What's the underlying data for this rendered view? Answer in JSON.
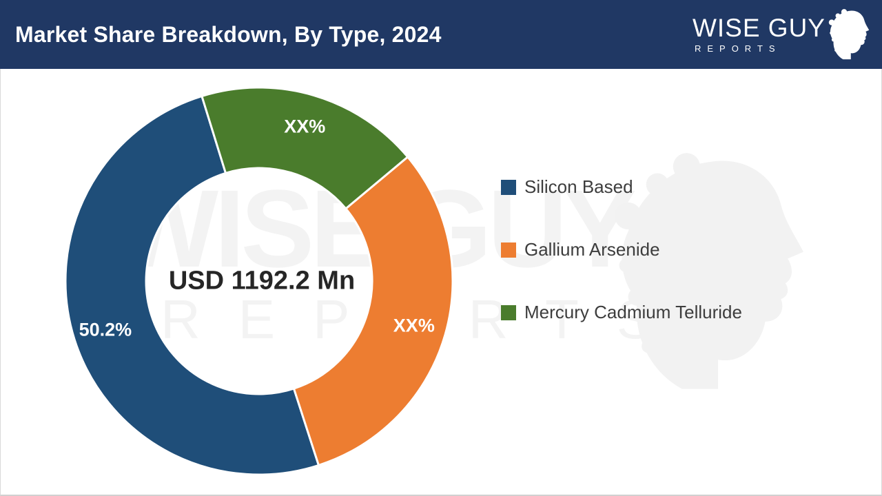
{
  "header": {
    "title": "Market Share Breakdown, By Type, 2024",
    "logo": {
      "line1": "WISE GUY",
      "line2": "REPORTS"
    }
  },
  "watermark": {
    "line1": "WISE GUY",
    "line2": "REPORTS"
  },
  "chart_data": {
    "type": "pie",
    "subtype": "donut",
    "title": "Market Share Breakdown, By Type, 2024",
    "center_label": "USD 1192.2 Mn",
    "units": "percent share of USD 1192.2 Mn",
    "legend_position": "right",
    "rotation_deg": 342.8,
    "series": [
      {
        "name": "Silicon Based",
        "display_label": "50.2%",
        "value": 50.2,
        "color": "#1F4E79"
      },
      {
        "name": "Gallium Arsenide",
        "display_label": "XX%",
        "value": 31.1,
        "color": "#ED7D31"
      },
      {
        "name": "Mercury Cadmium Telluride",
        "display_label": "XX%",
        "value": 18.7,
        "color": "#4A7C2C"
      }
    ]
  },
  "colors": {
    "header_bg": "#203864",
    "watermark": "#f3f3f3",
    "center_text": "#262626",
    "legend_text": "#3d3d3d"
  }
}
